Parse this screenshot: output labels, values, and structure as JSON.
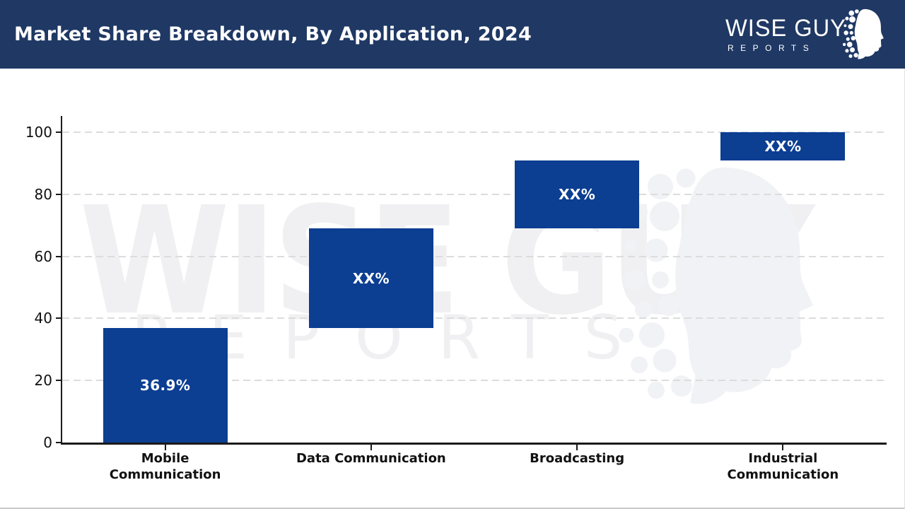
{
  "header": {
    "title": "Market Share Breakdown, By Application, 2024",
    "brand": {
      "name": "WISE GUY",
      "sub": "REPORTS"
    }
  },
  "watermark": {
    "line1": "WISE GUY",
    "line2": "REPORTS"
  },
  "colors": {
    "header_navy": "#1F3864",
    "bar_blue": "#0C3E92",
    "axis": "#1A1A1A",
    "grid": "#DCDCDC",
    "watermark_gray": "#F0F0F2",
    "bar_label_white": "#FFFFFF"
  },
  "chart_data": {
    "type": "bar",
    "subtype": "waterfall-step",
    "title": "Market Share Breakdown, By Application, 2024",
    "categories": [
      "Mobile\nCommunication",
      "Data Communication",
      "Broadcasting",
      "Industrial\nCommunication"
    ],
    "bars": [
      {
        "category": "Mobile Communication",
        "start": 0,
        "end": 36.9,
        "label": "36.9%"
      },
      {
        "category": "Data Communication",
        "start": 36.9,
        "end": 69,
        "label": "XX%"
      },
      {
        "category": "Broadcasting",
        "start": 69,
        "end": 91,
        "label": "XX%"
      },
      {
        "category": "Industrial Communication",
        "start": 91,
        "end": 100,
        "label": "XX%"
      }
    ],
    "xlabel": "",
    "ylabel": "",
    "ylim": [
      0,
      100
    ],
    "yticks": [
      0,
      20,
      40,
      60,
      80,
      100
    ],
    "grid": "horizontal-dashed",
    "legend": null,
    "bar_color": "#0C3E92",
    "bar_label_color": "#FFFFFF"
  }
}
